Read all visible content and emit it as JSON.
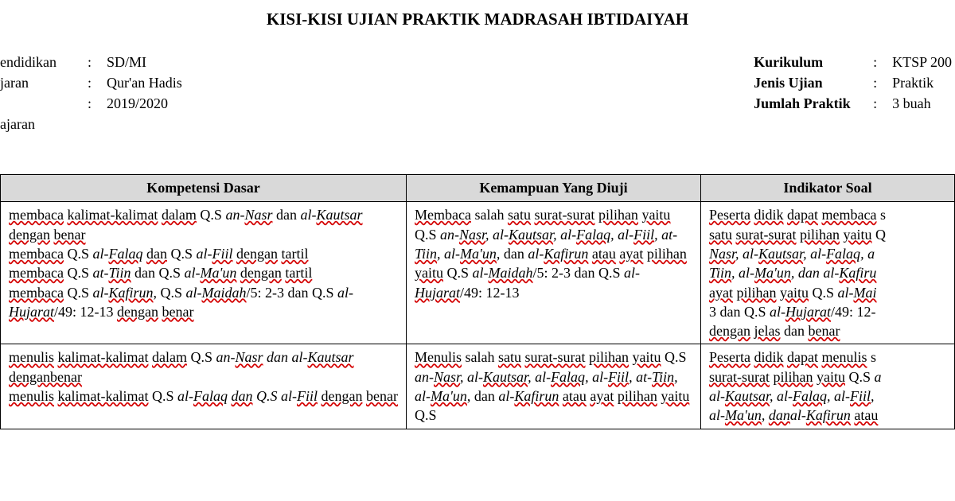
{
  "title": "KISI-KISI UJIAN PRAKTIK MADRASAH IBTIDAIYAH",
  "meta_left": {
    "r1_label": "endidikan",
    "r1_value": "SD/MI",
    "r2_label": "jaran",
    "r2_value": "Qur'an Hadis",
    "r3_label": "",
    "r3_value": "2019/2020",
    "r4_label": "ajaran",
    "r4_value": ""
  },
  "meta_right": {
    "r1_label": "Kurikulum",
    "r1_value": "KTSP 200",
    "r2_label": "Jenis Ujian",
    "r2_value": "Praktik",
    "r3_label": "Jumlah Praktik",
    "r3_value": "3 buah"
  },
  "table": {
    "headers": {
      "c1": "Kompetensi Dasar",
      "c2": "Kemampuan Yang Diuji",
      "c3": "Indikator Soal"
    },
    "header_bg": "#d9d9d9",
    "border_color": "#000000",
    "rows": [
      {
        "c1_html": "<span class=\"spellerr\">membaca</span> <span class=\"spellerr\">kalimat-kalimat</span> <span class=\"spellerr\">dalam</span> Q.S <em class=\"it\">an-<span class=\"spellerr\">Nasr</span></em> dan <em class=\"it\">al-<span class=\"spellerr\">Kautsar</span></em> <span class=\"spellerr\">dengan</span> <span class=\"spellerr\">benar</span><br><span class=\"spellerr\">membaca</span> Q.S <em class=\"it\">al-<span class=\"spellerr\">Falaq</span></em> <span class=\"spellerr\">dan</span> Q.S <em class=\"it\">al-<span class=\"spellerr\">Fiil</span></em> <span class=\"spellerr\">dengan</span> <span class=\"spellerr\">tartil</span><br><span class=\"spellerr\">membaca</span> Q.S <em class=\"it\">at-<span class=\"spellerr\">Tiin</span></em> dan Q.S <em class=\"it\">al-<span class=\"spellerr\">Ma'un</span></em> <span class=\"spellerr\">dengan</span> <span class=\"spellerr\">tartil</span><br><span class=\"spellerr\">membaca</span> Q.S <em class=\"it\">al-<span class=\"spellerr\">Kafirun</span></em>, Q.S <em class=\"it\">al-<span class=\"spellerr\">Maidah</span></em>/5: 2-3 dan Q.S <em class=\"it\">al-<span class=\"spellerr\">Hujarat</span></em>/49: 12-13 <span class=\"spellerr\">dengan</span> <span class=\"spellerr\">benar</span>",
        "c2_html": "<span class=\"spellerr\">Membaca</span> salah <span class=\"spellerr\">satu</span> <span class=\"spellerr\">surat-surat</span> <span class=\"spellerr\">pilihan</span> <span class=\"spellerr\">yaitu</span> Q.S <em class=\"it\">an-<span class=\"spellerr\">Nasr</span>, al-<span class=\"spellerr\">Kautsar</span>, al-<span class=\"spellerr\">Falaq</span>, al-<span class=\"spellerr\">Fiil</span>, at-<span class=\"spellerr\">Tiin</span>, al-<span class=\"spellerr\">Ma'un</span></em>, dan <em class=\"it\">al-<span class=\"spellerr\">Kafirun</span></em> <span class=\"spellerr\">atau</span> <span class=\"spellerr\">ayat</span> <span class=\"spellerr\">pilihan</span> <span class=\"spellerr\">yaitu</span> Q.S <em class=\"it\">al-<span class=\"spellerr\">Maidah</span></em>/5: 2-3 dan Q.S <em class=\"it\">al-<span class=\"spellerr\">Hujarat</span></em>/49: 12-13",
        "c3_html": "<span class=\"spellerr\">Peserta</span> <span class=\"spellerr\">didik</span> <span class=\"spellerr\">dapat</span> <span class=\"spellerr\">membaca</span> s<br><span class=\"spellerr\">satu</span> <span class=\"spellerr\">surat-surat</span> <span class=\"spellerr\">pilihan</span> <span class=\"spellerr\">yaitu</span> Q<br><em class=\"it\"><span class=\"spellerr\">Nasr</span>, al-<span class=\"spellerr\">Kautsar</span>, al-<span class=\"spellerr\">Falaq</span>, a<br><span class=\"spellerr\">Tiin</span>, al-<span class=\"spellerr\">Ma'un</span>, dan al-<span class=\"spellerr\">Kafiru</span></em><br><span class=\"spellerr\">ayat</span> <span class=\"spellerr\">pilihan</span> <span class=\"spellerr\">yaitu</span> Q.S <em class=\"it\">al-<span class=\"spellerr\">Mai</span></em><br>3 dan Q.S <em class=\"it\">al-<span class=\"spellerr\">Hujarat</span></em>/49: 12-<br><span class=\"spellerr\">dengan</span> <span class=\"spellerr\">jelas</span> dan <span class=\"spellerr\">benar</span>"
      },
      {
        "c1_html": "<span class=\"spellerr\">menulis</span> <span class=\"spellerr\">kalimat-kalimat</span> <span class=\"spellerr\">dalam</span> Q.S <em class=\"it\">an-<span class=\"spellerr\">Nasr</span> dan al-<span class=\"spellerr\">Kautsar</span></em>  <span class=\"spellerr\">denganbenar</span><br><span class=\"spellerr\">menulis</span> <span class=\"spellerr\">kalimat-kalimat</span>  Q.S <em class=\"it\">al-<span class=\"spellerr\">Falaq</span> <span class=\"spellerr\">dan</span> Q.S al-<span class=\"spellerr\">Fiil</span></em> <span class=\"spellerr\">dengan</span> <span class=\"spellerr\">benar</span>",
        "c2_html": "<span class=\"spellerr\">Menulis</span> salah <span class=\"spellerr\">satu</span> <span class=\"spellerr\">surat-surat</span> <span class=\"spellerr\">pilihan</span> <span class=\"spellerr\">yaitu</span> Q.S <em class=\"it\">an-<span class=\"spellerr\">Nasr</span>, al-<span class=\"spellerr\">Kautsar</span>, al-<span class=\"spellerr\">Falaq</span>, al-<span class=\"spellerr\">Fiil</span>, at-<span class=\"spellerr\">Tiin</span>, al-<span class=\"spellerr\">Ma'un</span></em>, dan <em class=\"it\">al-<span class=\"spellerr\">Kafirun</span></em> <span class=\"spellerr\">atau</span> <span class=\"spellerr\">ayat</span> <span class=\"spellerr\">pilihan</span> <span class=\"spellerr\">yaitu</span> Q.S",
        "c3_html": "<span class=\"spellerr\">Peserta</span> <span class=\"spellerr\">didik</span> <span class=\"spellerr\">dapat</span> <span class=\"spellerr\">menulis</span> s<br><span class=\"spellerr\">surat-surat</span> <span class=\"spellerr\">pilihan</span> <span class=\"spellerr\">yaitu</span> Q.S <em class=\"it\">a<br>al-<span class=\"spellerr\">Kautsar</span>, al-<span class=\"spellerr\">Falaq</span>, al-<span class=\"spellerr\">Fiil</span>,<br>al-<span class=\"spellerr\">Ma'un</span>, <span class=\"spellerr\">dan</span>al-<span class=\"spellerr\">Kafirun</span></em> <span class=\"spellerr\">atau</span>"
      }
    ]
  },
  "style": {
    "page_bg": "#ffffff",
    "text_color": "#000000",
    "title_fontsize": 21,
    "body_fontsize": 18,
    "spell_wave_color": "#d40000"
  }
}
